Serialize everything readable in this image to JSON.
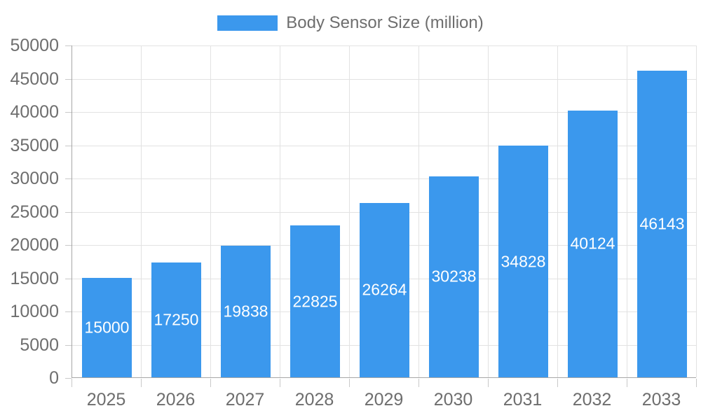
{
  "legend": {
    "label": "Body Sensor Size (million)"
  },
  "colors": {
    "bar": "#3B98ED",
    "axis_line": "#a6a6a6",
    "grid_line": "#e2e2e2",
    "tick_line": "#c9c9c9",
    "axis_text": "#6e6e6e",
    "value_text": "#ffffff",
    "background": "#ffffff"
  },
  "chart_data": {
    "type": "bar",
    "title": "Body Sensor Size (million)",
    "categories": [
      "2025",
      "2026",
      "2027",
      "2028",
      "2029",
      "2030",
      "2031",
      "2032",
      "2033"
    ],
    "values": [
      15000,
      17250,
      19838,
      22825,
      26264,
      30238,
      34828,
      40124,
      46143
    ],
    "xlabel": "",
    "ylabel": "",
    "ylim": [
      0,
      50000
    ],
    "ytick_step": 5000,
    "ytick_labels": [
      "0",
      "5000",
      "10000",
      "15000",
      "20000",
      "25000",
      "30000",
      "35000",
      "40000",
      "45000",
      "50000"
    ],
    "grid": true,
    "legend_position": "top-center",
    "value_label_position": "inside-center"
  }
}
